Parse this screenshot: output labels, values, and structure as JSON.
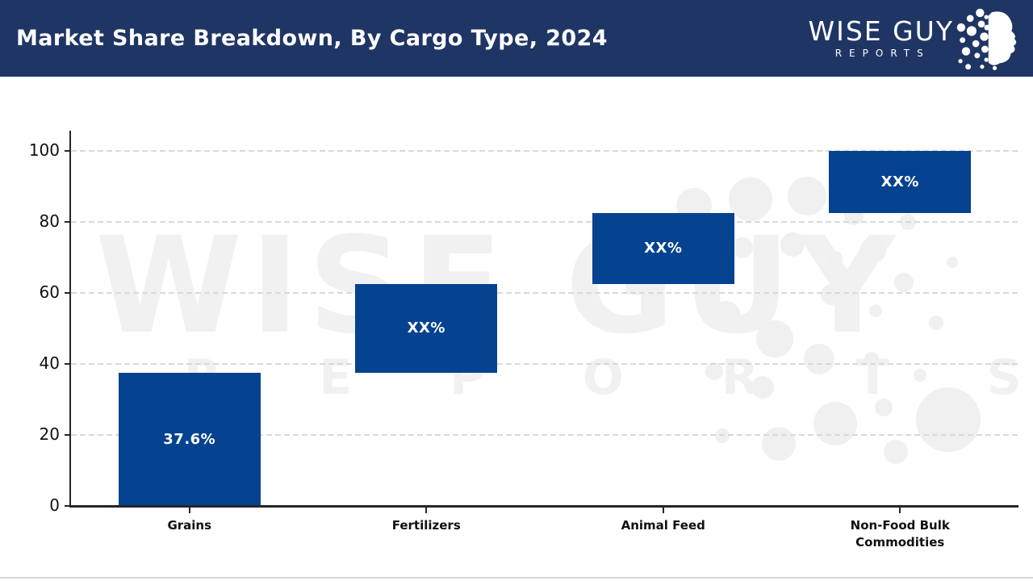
{
  "header": {
    "title": "Market Share Breakdown, By Cargo Type, 2024",
    "bg_color": "#1f3564",
    "logo": {
      "line1": "WISE GUY",
      "line2": "REPORTS"
    }
  },
  "watermark": {
    "line1": "WISE GUY",
    "line2": "R E P O R T S"
  },
  "chart_data": {
    "type": "bar",
    "subtype": "waterfall",
    "title": "Market Share Breakdown, By Cargo Type, 2024",
    "categories": [
      "Grains",
      "Fertilizers",
      "Animal Feed",
      "Non-Food Bulk Commodities"
    ],
    "segments": [
      {
        "category": "Grains",
        "start": 0,
        "end": 37.6,
        "label": "37.6%"
      },
      {
        "category": "Fertilizers",
        "start": 37.6,
        "end": 62.5,
        "label": "XX%"
      },
      {
        "category": "Animal Feed",
        "start": 62.5,
        "end": 82.6,
        "label": "XX%"
      },
      {
        "category": "Non-Food Bulk Commodities",
        "start": 82.6,
        "end": 100,
        "label": "XX%"
      }
    ],
    "xlabel": "",
    "ylabel": "",
    "ylim": [
      0,
      100
    ],
    "yticks": [
      0,
      20,
      40,
      60,
      80,
      100
    ],
    "grid": "dashed horizontal, below bars",
    "legend": "none",
    "bar_color": "#05428f",
    "bar_label_color": "#ffffff",
    "axis_color": "#262626",
    "gridline_color": "#d9d9d9"
  }
}
